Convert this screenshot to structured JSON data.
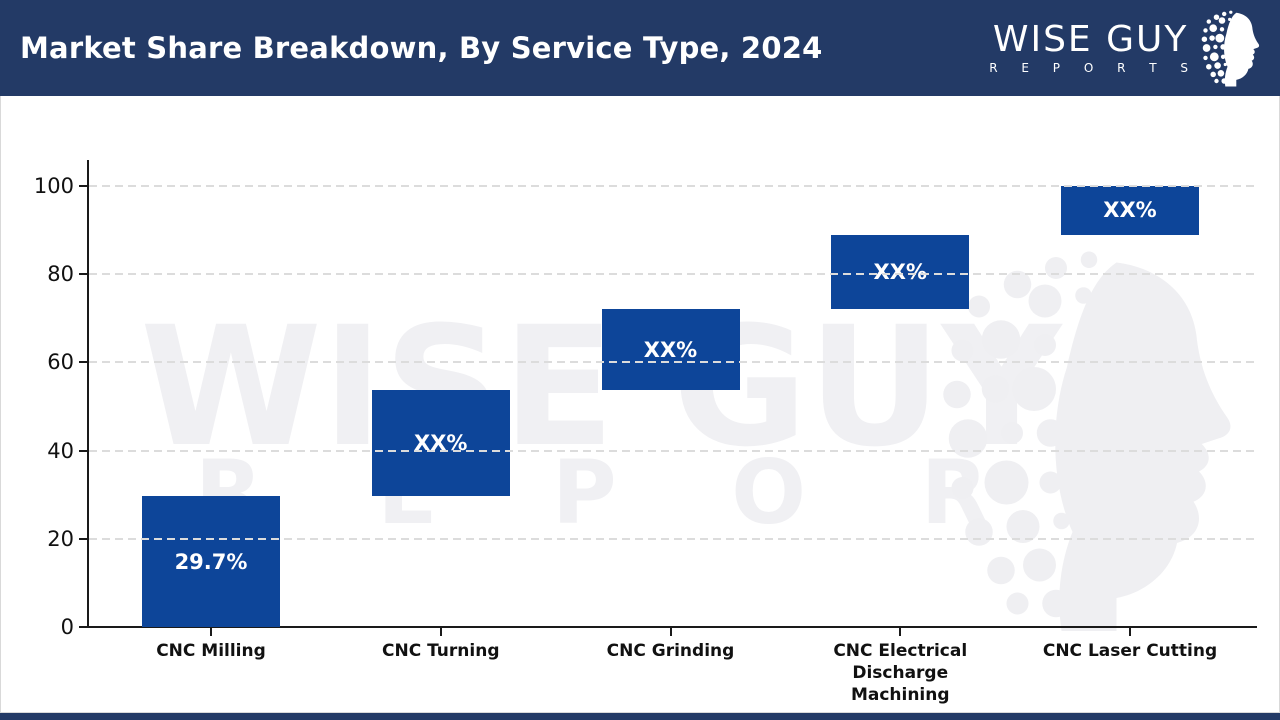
{
  "header": {
    "title": "Market Share Breakdown, By Service Type, 2024",
    "brand": {
      "line1": "WISE GUY",
      "line2": "R E P O R T S"
    },
    "bg_color": "#233a66",
    "text_color": "#ffffff"
  },
  "watermark": {
    "line1": "WISE GUY",
    "line2": "R E P O R T S"
  },
  "footer": {
    "bg_color": "#233a66"
  },
  "chart_data": {
    "type": "bar",
    "subtype": "waterfall",
    "title": "Market Share Breakdown, By Service Type, 2024",
    "xlabel": "",
    "ylabel": "",
    "ylim": [
      0,
      105
    ],
    "yticks": [
      0,
      20,
      40,
      60,
      80,
      100
    ],
    "grid": "horizontal-dashed",
    "legend": "none",
    "bar_color": "#0d4599",
    "grid_color": "#dcdcdc",
    "axis_color": "#1a1a1a",
    "categories": [
      "CNC Milling",
      "CNC Turning",
      "CNC Grinding",
      "CNC Electrical Discharge Machining",
      "CNC Laser Cutting"
    ],
    "segments": [
      {
        "category": "CNC Milling",
        "start": 0,
        "end": 29.7,
        "label": "29.7%"
      },
      {
        "category": "CNC Turning",
        "start": 29.7,
        "end": 53.7,
        "label": "XX%"
      },
      {
        "category": "CNC Grinding",
        "start": 53.7,
        "end": 72.1,
        "label": "XX%"
      },
      {
        "category": "CNC Electrical Discharge Machining",
        "start": 72.1,
        "end": 88.9,
        "label": "XX%"
      },
      {
        "category": "CNC Laser Cutting",
        "start": 88.9,
        "end": 100,
        "label": "XX%"
      }
    ]
  }
}
